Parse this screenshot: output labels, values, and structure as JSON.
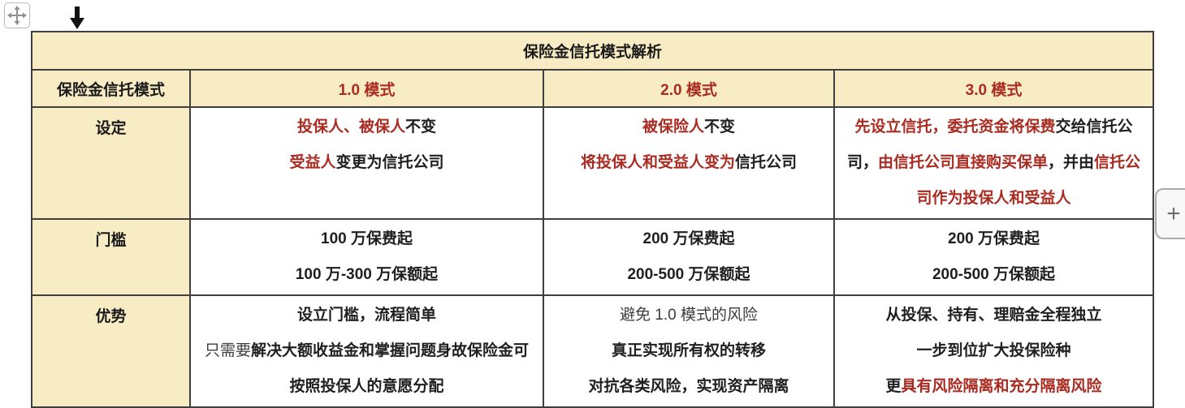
{
  "colors": {
    "red": "#a92b21",
    "black": "#1f1f1f",
    "gray": "#3c3c3c",
    "cream": "#f8ecc5",
    "border": "#3f3f3f"
  },
  "toolbar": {
    "move_icon": "move-handle",
    "pointer_icon": "down-arrow",
    "plus_label": "+"
  },
  "table": {
    "title": "保险金信托模式解析",
    "header": {
      "row_label": "保险金信托模式",
      "columns": [
        "1.0 模式",
        "2.0 模式",
        "3.0 模式"
      ]
    },
    "rows": [
      {
        "label": "设定",
        "cells": [
          {
            "lines": [
              {
                "segments": [
                  {
                    "text": "投保人、被保人",
                    "color": "red",
                    "bold": true
                  },
                  {
                    "text": "不变",
                    "color": "black",
                    "bold": true
                  }
                ]
              },
              {
                "segments": [
                  {
                    "text": "受益人",
                    "color": "red",
                    "bold": true
                  },
                  {
                    "text": "变更为信托公司",
                    "color": "black",
                    "bold": true
                  }
                ]
              }
            ]
          },
          {
            "lines": [
              {
                "segments": [
                  {
                    "text": "被保险人",
                    "color": "red",
                    "bold": true
                  },
                  {
                    "text": "不变",
                    "color": "black",
                    "bold": true
                  }
                ]
              },
              {
                "segments": [
                  {
                    "text": "将投保人和受益人变为",
                    "color": "red",
                    "bold": true
                  },
                  {
                    "text": "信托公司",
                    "color": "black",
                    "bold": true
                  }
                ]
              }
            ]
          },
          {
            "lines": [
              {
                "segments": [
                  {
                    "text": "先设立信托，委托资金将保费",
                    "color": "red",
                    "bold": true
                  },
                  {
                    "text": "交给信托公司，",
                    "color": "black",
                    "bold": true
                  },
                  {
                    "text": "由信托公司直接购买保单",
                    "color": "red",
                    "bold": true
                  },
                  {
                    "text": "，并由",
                    "color": "black",
                    "bold": true
                  },
                  {
                    "text": "信托公司作为投保人和受益人",
                    "color": "red",
                    "bold": true
                  }
                ]
              }
            ]
          }
        ]
      },
      {
        "label": "门槛",
        "cells": [
          {
            "lines": [
              {
                "segments": [
                  {
                    "text": "100 万保费起",
                    "color": "black",
                    "bold": true
                  }
                ]
              },
              {
                "segments": [
                  {
                    "text": "100 万-300 万保额起",
                    "color": "black",
                    "bold": true
                  }
                ]
              }
            ]
          },
          {
            "lines": [
              {
                "segments": [
                  {
                    "text": "200 万保费起",
                    "color": "black",
                    "bold": true
                  }
                ]
              },
              {
                "segments": [
                  {
                    "text": "200-500 万保额起",
                    "color": "black",
                    "bold": true
                  }
                ]
              }
            ]
          },
          {
            "lines": [
              {
                "segments": [
                  {
                    "text": "200 万保费起",
                    "color": "black",
                    "bold": true
                  }
                ]
              },
              {
                "segments": [
                  {
                    "text": "200-500 万保额起",
                    "color": "black",
                    "bold": true
                  }
                ]
              }
            ]
          }
        ]
      },
      {
        "label": "优势",
        "cells": [
          {
            "lines": [
              {
                "segments": [
                  {
                    "text": "设立门槛，流程简单",
                    "color": "black",
                    "bold": true
                  }
                ]
              },
              {
                "segments": [
                  {
                    "text": "只需要",
                    "color": "gray",
                    "bold": false
                  },
                  {
                    "text": "解决大额收益金和掌握问题身故保险金可按照投保人的意愿分配",
                    "color": "black",
                    "bold": true
                  }
                ]
              }
            ]
          },
          {
            "lines": [
              {
                "segments": [
                  {
                    "text": "避免 1.0 模式的风险",
                    "color": "gray",
                    "bold": false
                  }
                ]
              },
              {
                "segments": [
                  {
                    "text": "真正实现所有权的转移",
                    "color": "black",
                    "bold": true
                  }
                ]
              },
              {
                "segments": [
                  {
                    "text": "对抗各类风险，实现资产隔离",
                    "color": "black",
                    "bold": true
                  }
                ]
              }
            ]
          },
          {
            "lines": [
              {
                "segments": [
                  {
                    "text": "从投保、持有、理赔金全程独立",
                    "color": "black",
                    "bold": true
                  }
                ]
              },
              {
                "segments": [
                  {
                    "text": "一步到位扩大投保险种",
                    "color": "black",
                    "bold": true
                  }
                ]
              },
              {
                "segments": [
                  {
                    "text": "更",
                    "color": "black",
                    "bold": true
                  },
                  {
                    "text": "具有风险隔离和充分隔离风险",
                    "color": "red",
                    "bold": true
                  }
                ]
              }
            ]
          }
        ]
      }
    ]
  }
}
